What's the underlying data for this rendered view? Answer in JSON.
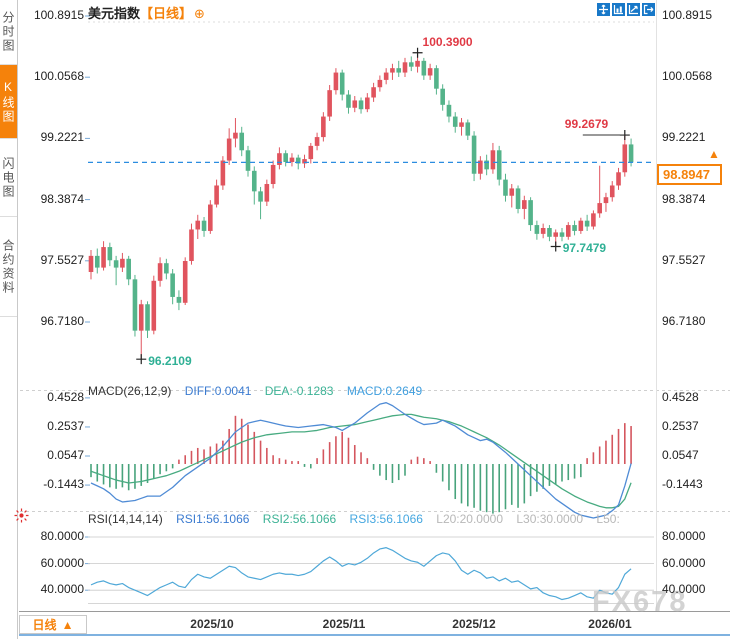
{
  "header": {
    "title": "美元指数",
    "period_tag": "【日线】",
    "add_icon": "⊕"
  },
  "toolbar": {
    "icons": [
      "pan-icon",
      "chart-frame-icon",
      "chart-arrow-icon",
      "exit-icon"
    ]
  },
  "sidebar": {
    "items": [
      {
        "label": "分时图",
        "active": false
      },
      {
        "label": "K线图",
        "active": true
      },
      {
        "label": "闪电图",
        "active": false
      },
      {
        "label": "合约资料",
        "active": false
      }
    ]
  },
  "bottom_bar": {
    "period_label": "日线",
    "arrow": "▲"
  },
  "watermark": "FX678",
  "colors": {
    "up": "#e0545e",
    "down": "#54b38a",
    "up_text": "#e03a45",
    "down_text": "#2fb095",
    "dashed_line": "#2b8de0",
    "orange": "#f5820b",
    "diff_line": "#4f8bd5",
    "dea_line": "#48ab81",
    "hist_up": "#d4565e",
    "hist_down": "#48a37c",
    "rsi_line": "#4fa8d8"
  },
  "chart_data": {
    "type": "candlestick",
    "title": "美元指数",
    "period": "日线",
    "y_axis_labels": [
      "100.8915",
      "100.0568",
      "99.2221",
      "98.3874",
      "97.5527",
      "96.7180"
    ],
    "x_axis_labels": [
      "2025/10",
      "2025/11",
      "2025/12",
      "2026/01"
    ],
    "current_price": "98.8947",
    "annotations": [
      {
        "value": "96.2109",
        "index": 8,
        "price": 96.2109,
        "kind": "low",
        "placement": "below-right"
      },
      {
        "value": "100.3900",
        "index": 52,
        "price": 100.39,
        "kind": "high",
        "placement": "above-right"
      },
      {
        "value": "97.7479",
        "index": 74,
        "price": 97.7479,
        "kind": "low",
        "placement": "below-right"
      },
      {
        "value": "99.2679",
        "index": 85,
        "price": 99.2679,
        "kind": "high",
        "placement": "left"
      }
    ],
    "candles": [
      [
        97.4,
        97.7,
        97.3,
        97.62
      ],
      [
        97.62,
        97.72,
        97.38,
        97.46
      ],
      [
        97.46,
        97.82,
        97.42,
        97.74
      ],
      [
        97.74,
        97.8,
        97.48,
        97.56
      ],
      [
        97.56,
        97.62,
        97.22,
        97.46
      ],
      [
        97.46,
        97.66,
        97.4,
        97.58
      ],
      [
        97.58,
        97.62,
        97.22,
        97.3
      ],
      [
        97.3,
        97.36,
        96.52,
        96.6
      ],
      [
        96.6,
        97.02,
        96.2109,
        96.96
      ],
      [
        96.96,
        97.0,
        96.5,
        96.6
      ],
      [
        96.6,
        97.35,
        96.55,
        97.28
      ],
      [
        97.28,
        97.6,
        97.2,
        97.52
      ],
      [
        97.52,
        97.58,
        97.3,
        97.38
      ],
      [
        97.38,
        97.44,
        96.96,
        97.06
      ],
      [
        97.06,
        97.15,
        96.88,
        96.98
      ],
      [
        96.98,
        97.6,
        96.95,
        97.55
      ],
      [
        97.55,
        98.06,
        97.5,
        97.98
      ],
      [
        97.98,
        98.18,
        97.85,
        98.1
      ],
      [
        98.1,
        98.15,
        97.88,
        97.96
      ],
      [
        97.96,
        98.38,
        97.92,
        98.32
      ],
      [
        98.32,
        98.66,
        98.28,
        98.58
      ],
      [
        98.58,
        98.98,
        98.52,
        98.92
      ],
      [
        98.92,
        99.36,
        98.86,
        99.22
      ],
      [
        99.22,
        99.5,
        99.1,
        99.3
      ],
      [
        99.3,
        99.38,
        98.98,
        99.06
      ],
      [
        99.06,
        99.12,
        98.7,
        98.78
      ],
      [
        98.78,
        98.84,
        98.32,
        98.5
      ],
      [
        98.5,
        98.56,
        98.12,
        98.36
      ],
      [
        98.36,
        98.66,
        98.3,
        98.6
      ],
      [
        98.6,
        98.92,
        98.54,
        98.86
      ],
      [
        98.86,
        99.1,
        98.8,
        99.02
      ],
      [
        99.02,
        99.06,
        98.84,
        98.9
      ],
      [
        98.9,
        99.02,
        98.84,
        98.96
      ],
      [
        98.96,
        99.0,
        98.8,
        98.88
      ],
      [
        98.88,
        99.0,
        98.82,
        98.94
      ],
      [
        98.94,
        99.16,
        98.88,
        99.12
      ],
      [
        99.12,
        99.3,
        99.06,
        99.24
      ],
      [
        99.24,
        99.58,
        99.18,
        99.52
      ],
      [
        99.52,
        99.95,
        99.46,
        99.88
      ],
      [
        99.88,
        100.18,
        99.82,
        100.12
      ],
      [
        100.12,
        100.16,
        99.74,
        99.82
      ],
      [
        99.82,
        99.88,
        99.56,
        99.64
      ],
      [
        99.64,
        99.8,
        99.58,
        99.74
      ],
      [
        99.74,
        99.78,
        99.56,
        99.62
      ],
      [
        99.62,
        99.84,
        99.58,
        99.78
      ],
      [
        99.78,
        99.98,
        99.72,
        99.92
      ],
      [
        99.92,
        100.08,
        99.86,
        100.02
      ],
      [
        100.02,
        100.18,
        99.96,
        100.12
      ],
      [
        100.12,
        100.24,
        100.02,
        100.18
      ],
      [
        100.18,
        100.28,
        100.06,
        100.12
      ],
      [
        100.12,
        100.32,
        100.06,
        100.26
      ],
      [
        100.26,
        100.34,
        100.14,
        100.2
      ],
      [
        100.2,
        100.39,
        100.12,
        100.28
      ],
      [
        100.28,
        100.32,
        100.02,
        100.08
      ],
      [
        100.08,
        100.24,
        100.02,
        100.18
      ],
      [
        100.18,
        100.22,
        99.82,
        99.9
      ],
      [
        99.9,
        99.96,
        99.6,
        99.68
      ],
      [
        99.68,
        99.74,
        99.44,
        99.52
      ],
      [
        99.52,
        99.58,
        99.3,
        99.38
      ],
      [
        99.38,
        99.5,
        99.26,
        99.44
      ],
      [
        99.44,
        99.48,
        99.2,
        99.26
      ],
      [
        99.26,
        99.32,
        98.64,
        98.74
      ],
      [
        98.74,
        98.98,
        98.66,
        98.92
      ],
      [
        98.92,
        99.0,
        98.72,
        98.8
      ],
      [
        98.8,
        99.16,
        98.74,
        99.06
      ],
      [
        99.06,
        99.12,
        98.58,
        98.66
      ],
      [
        98.66,
        98.74,
        98.36,
        98.44
      ],
      [
        98.44,
        98.6,
        98.28,
        98.54
      ],
      [
        98.54,
        98.58,
        98.2,
        98.26
      ],
      [
        98.26,
        98.44,
        98.12,
        98.38
      ],
      [
        98.38,
        98.42,
        97.96,
        98.04
      ],
      [
        98.04,
        98.1,
        97.84,
        97.92
      ],
      [
        97.92,
        98.06,
        97.86,
        98.0
      ],
      [
        98.0,
        98.04,
        97.82,
        97.88
      ],
      [
        97.88,
        97.98,
        97.7479,
        97.94
      ],
      [
        97.94,
        98.0,
        97.82,
        97.88
      ],
      [
        97.88,
        98.08,
        97.84,
        98.04
      ],
      [
        98.04,
        98.1,
        97.9,
        97.96
      ],
      [
        97.96,
        98.14,
        97.92,
        98.1
      ],
      [
        98.1,
        98.18,
        97.96,
        98.02
      ],
      [
        98.02,
        98.24,
        97.98,
        98.2
      ],
      [
        98.2,
        98.85,
        98.14,
        98.34
      ],
      [
        98.34,
        98.48,
        98.22,
        98.42
      ],
      [
        98.42,
        98.64,
        98.36,
        98.58
      ],
      [
        98.58,
        98.82,
        98.52,
        98.76
      ],
      [
        98.76,
        99.2679,
        98.7,
        99.14
      ],
      [
        99.14,
        99.22,
        98.84,
        98.8947
      ]
    ],
    "macd": {
      "label": "MACD(26,12,9)",
      "diff_label": "DIFF:0.0041",
      "dea_label": "DEA:-0.1283",
      "macd_label": "MACD:0.2649",
      "axis": [
        "0.4528",
        "0.2537",
        "0.0547",
        "-0.1443"
      ],
      "hist": [
        -0.09,
        -0.12,
        -0.14,
        -0.16,
        -0.17,
        -0.16,
        -0.18,
        -0.17,
        -0.15,
        -0.13,
        -0.1,
        -0.07,
        -0.05,
        -0.03,
        0.03,
        0.06,
        0.09,
        0.11,
        0.1,
        0.12,
        0.14,
        0.16,
        0.24,
        0.33,
        0.31,
        0.27,
        0.22,
        0.16,
        0.11,
        0.06,
        0.04,
        0.03,
        0.02,
        0.02,
        -0.02,
        -0.03,
        0.04,
        0.1,
        0.15,
        0.19,
        0.22,
        0.18,
        0.13,
        0.08,
        0.04,
        -0.04,
        -0.08,
        -0.11,
        -0.13,
        -0.11,
        -0.08,
        0.03,
        0.05,
        0.04,
        0.02,
        -0.06,
        -0.12,
        -0.18,
        -0.24,
        -0.27,
        -0.29,
        -0.3,
        -0.32,
        -0.33,
        -0.34,
        -0.33,
        -0.31,
        -0.28,
        -0.3,
        -0.27,
        -0.22,
        -0.19,
        -0.17,
        -0.15,
        -0.14,
        -0.12,
        -0.11,
        -0.1,
        -0.09,
        0.04,
        0.08,
        0.12,
        0.16,
        0.2,
        0.24,
        0.28,
        0.26
      ],
      "diff": [
        -0.13,
        -0.15,
        -0.17,
        -0.2,
        -0.24,
        -0.26,
        -0.255,
        -0.25,
        -0.235,
        -0.22,
        -0.22,
        -0.22,
        -0.19,
        -0.16,
        -0.12,
        -0.08,
        -0.05,
        -0.02,
        0.01,
        0.04,
        0.08,
        0.12,
        0.17,
        0.22,
        0.25,
        0.28,
        0.29,
        0.3,
        0.29,
        0.28,
        0.27,
        0.26,
        0.255,
        0.25,
        0.255,
        0.26,
        0.265,
        0.27,
        0.26,
        0.25,
        0.23,
        0.255,
        0.28,
        0.315,
        0.35,
        0.38,
        0.41,
        0.42,
        0.4,
        0.37,
        0.34,
        0.315,
        0.29,
        0.27,
        0.275,
        0.28,
        0.3,
        0.28,
        0.26,
        0.23,
        0.2,
        0.18,
        0.16,
        0.17,
        0.15,
        0.115,
        0.08,
        0.04,
        0.0,
        -0.04,
        -0.08,
        -0.12,
        -0.16,
        -0.2,
        -0.24,
        -0.27,
        -0.3,
        -0.33,
        -0.35,
        -0.36,
        -0.37,
        -0.36,
        -0.35,
        -0.32,
        -0.28,
        -0.15,
        0.0041
      ],
      "dea": [
        -0.05,
        -0.065,
        -0.08,
        -0.095,
        -0.11,
        -0.12,
        -0.13,
        -0.125,
        -0.12,
        -0.11,
        -0.1,
        -0.09,
        -0.08,
        -0.065,
        -0.05,
        -0.03,
        -0.01,
        0.01,
        0.03,
        0.05,
        0.07,
        0.09,
        0.11,
        0.13,
        0.15,
        0.165,
        0.18,
        0.19,
        0.2,
        0.205,
        0.21,
        0.215,
        0.22,
        0.22,
        0.22,
        0.225,
        0.23,
        0.24,
        0.25,
        0.255,
        0.26,
        0.265,
        0.27,
        0.28,
        0.29,
        0.3,
        0.31,
        0.32,
        0.33,
        0.335,
        0.34,
        0.34,
        0.33,
        0.32,
        0.315,
        0.31,
        0.3,
        0.29,
        0.275,
        0.26,
        0.24,
        0.22,
        0.2,
        0.18,
        0.155,
        0.13,
        0.1,
        0.07,
        0.04,
        0.01,
        -0.02,
        -0.05,
        -0.08,
        -0.11,
        -0.14,
        -0.17,
        -0.195,
        -0.22,
        -0.24,
        -0.26,
        -0.275,
        -0.29,
        -0.3,
        -0.3,
        -0.29,
        -0.24,
        -0.1283
      ]
    },
    "rsi": {
      "label": "RSI(14,14,14)",
      "rsi1_label": "RSI1:56.1066",
      "rsi2_label": "RSI2:56.1066",
      "rsi3_label": "RSI3:56.1066",
      "l20_label": "L20:20.0000",
      "l30_label": "L30:30.0000",
      "l50_label": "L50:",
      "axis": [
        "80.0000",
        "60.0000",
        "40.0000"
      ],
      "gridlines": [
        80,
        60,
        40,
        30
      ],
      "values": [
        44,
        46,
        47,
        45,
        44,
        45,
        42,
        40,
        38,
        36,
        39,
        42,
        44,
        46,
        43,
        42,
        48,
        52,
        50,
        49,
        52,
        55,
        58,
        57,
        53,
        50,
        49,
        48,
        50,
        52,
        53,
        52,
        52,
        51,
        52,
        54,
        58,
        62,
        65,
        62,
        58,
        60,
        59,
        61,
        64,
        68,
        71,
        72,
        70,
        67,
        64,
        62,
        61,
        58,
        62,
        66,
        68,
        67,
        62,
        55,
        52,
        55,
        53,
        49,
        50,
        47,
        49,
        46,
        47,
        44,
        41,
        42,
        38,
        36,
        35,
        33,
        34,
        36,
        38,
        35,
        34,
        40,
        38,
        37,
        42,
        52,
        56.1
      ]
    }
  }
}
